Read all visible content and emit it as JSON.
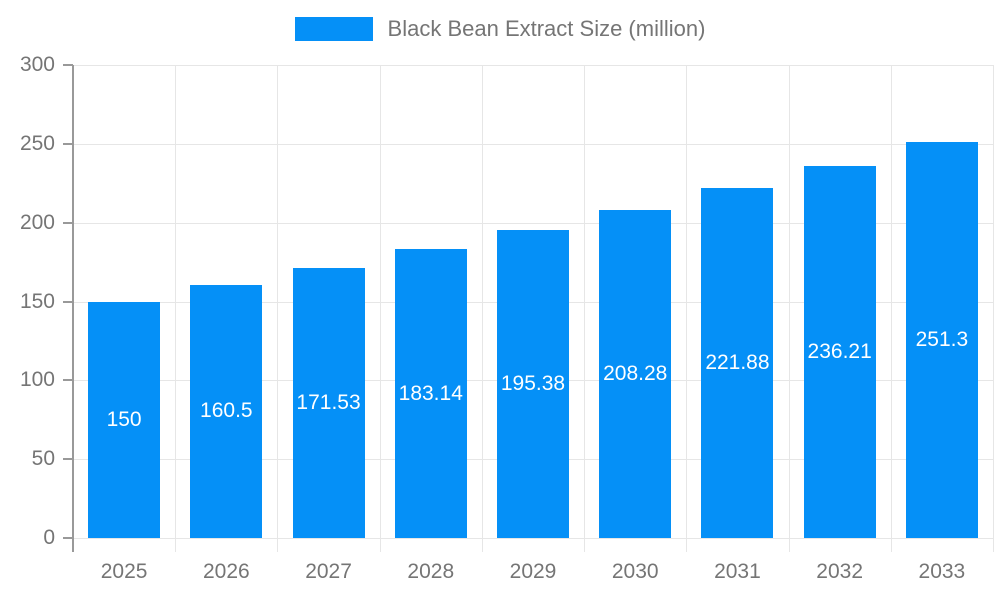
{
  "chart_data": {
    "type": "bar",
    "title": "Black Bean Extract Size (million)",
    "categories": [
      "2025",
      "2026",
      "2027",
      "2028",
      "2029",
      "2030",
      "2031",
      "2032",
      "2033"
    ],
    "values": [
      150,
      160.5,
      171.53,
      183.14,
      195.38,
      208.28,
      221.88,
      236.21,
      251.3
    ],
    "value_labels": [
      "150",
      "160.5",
      "171.53",
      "183.14",
      "195.38",
      "208.28",
      "221.88",
      "236.21",
      "251.3"
    ],
    "xlabel": "",
    "ylabel": "",
    "ylim": [
      0,
      300
    ],
    "yticks": [
      0,
      50,
      100,
      150,
      200,
      250,
      300
    ],
    "grid": true,
    "legend_position": "top-center",
    "colors": {
      "bar": "#0590F7",
      "bar_label_text": "#ffffff",
      "axis_text": "#757575",
      "grid_line": "#e6e6e6",
      "axis_line": "#999999",
      "background": "#ffffff"
    }
  }
}
